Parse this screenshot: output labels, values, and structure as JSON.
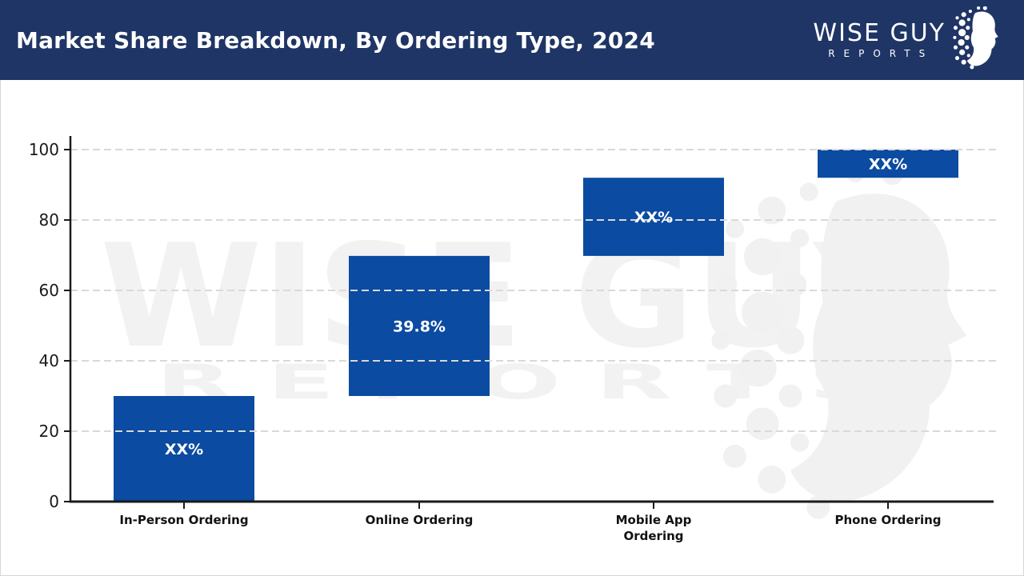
{
  "header": {
    "title": "Market Share Breakdown, By Ordering Type, 2024",
    "logo": {
      "line1": "WISE GUY",
      "line2": "REPORTS"
    }
  },
  "watermark": {
    "line1": "WISE GUY",
    "line2": "R E P O R T S"
  },
  "colors": {
    "header_bg": "#1f3565",
    "bar": "#0b4ba1",
    "bar_label": "#ffffff",
    "gridline": "#d9d9d9",
    "axis": "#1a1a1a",
    "tick_text": "#1a1a1a",
    "category_text": "#111111",
    "watermark": "#f2f2f2",
    "border": "#d6d6d6"
  },
  "chart_data": {
    "type": "bar",
    "subtype": "floating-waterfall",
    "title": "Market Share Breakdown, By Ordering Type, 2024",
    "categories": [
      "In-Person Ordering",
      "Online Ordering",
      "Mobile App\nOrdering",
      "Phone Ordering"
    ],
    "segments": [
      {
        "category": "In-Person Ordering",
        "start": 0,
        "end": 30,
        "value_label": "XX%",
        "value_estimate": 30
      },
      {
        "category": "Online Ordering",
        "start": 30,
        "end": 69.8,
        "value_label": "39.8%",
        "value_estimate": 39.8
      },
      {
        "category": "Mobile App Ordering",
        "start": 69.8,
        "end": 92,
        "value_label": "XX%",
        "value_estimate": 22.2
      },
      {
        "category": "Phone Ordering",
        "start": 92,
        "end": 100,
        "value_label": "XX%",
        "value_estimate": 8
      }
    ],
    "yticks": [
      0,
      20,
      40,
      60,
      80,
      100
    ],
    "ylim": [
      0,
      104
    ],
    "xlabel": "",
    "ylabel": "",
    "grid": "horizontal-dashed",
    "grid_above_bars": true,
    "legend": "none"
  }
}
